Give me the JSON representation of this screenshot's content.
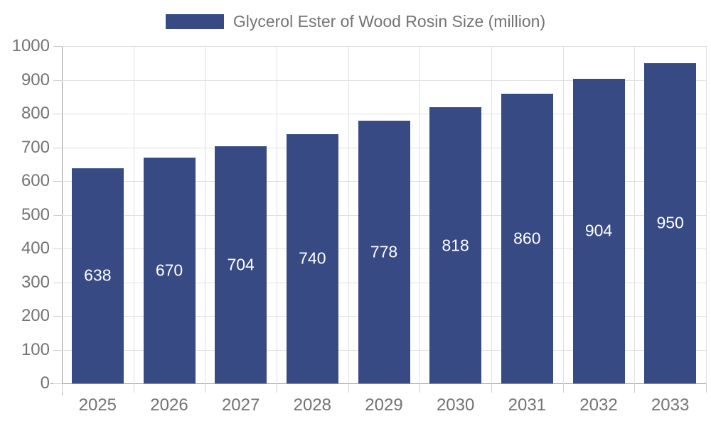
{
  "chart_data": {
    "type": "bar",
    "title": "",
    "legend": "Glycerol Ester of Wood Rosin Size (million)",
    "categories": [
      "2025",
      "2026",
      "2027",
      "2028",
      "2029",
      "2030",
      "2031",
      "2032",
      "2033"
    ],
    "values": [
      638,
      670,
      704,
      740,
      778,
      818,
      860,
      904,
      950
    ],
    "xlabel": "",
    "ylabel": "",
    "ylim": [
      0,
      1000
    ],
    "ytick_step": 100,
    "grid": true,
    "legend_position": "top-center",
    "bar_label_position": "inside-middle",
    "colors": {
      "bar": "#374a84",
      "bar_label": "#ffffff",
      "axis_text": "#737373",
      "axis_line": "#9a9a9a",
      "gridline": "#e0e0e0",
      "tick": "#cfcfcf",
      "background": "#ffffff"
    }
  }
}
